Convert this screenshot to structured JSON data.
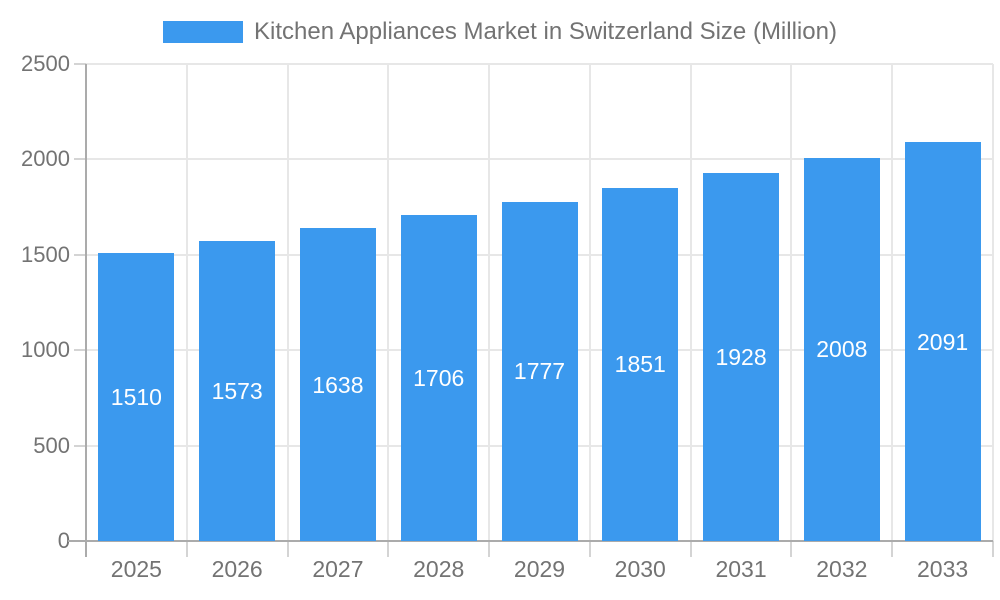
{
  "chart_data": {
    "type": "bar",
    "title": "Kitchen Appliances Market in Switzerland Size (Million)",
    "series_name": "Kitchen Appliances Market in Switzerland Size (Million)",
    "categories": [
      "2025",
      "2026",
      "2027",
      "2028",
      "2029",
      "2030",
      "2031",
      "2032",
      "2033"
    ],
    "values": [
      1510,
      1573,
      1638,
      1706,
      1777,
      1851,
      1928,
      2008,
      2091
    ],
    "xlabel": "",
    "ylabel": "",
    "ylim": [
      0,
      2500
    ],
    "y_ticks": [
      0,
      500,
      1000,
      1500,
      2000,
      2500
    ],
    "grid": true,
    "legend_position": "top",
    "colors": {
      "bar": "#3b99ee",
      "value_label": "#ffffff",
      "axis_text": "#737373",
      "grid_line": "#e7e7e7",
      "axis_line": "#ababab",
      "tick_mark": "#d4d4d4",
      "background": "#ffffff"
    }
  }
}
